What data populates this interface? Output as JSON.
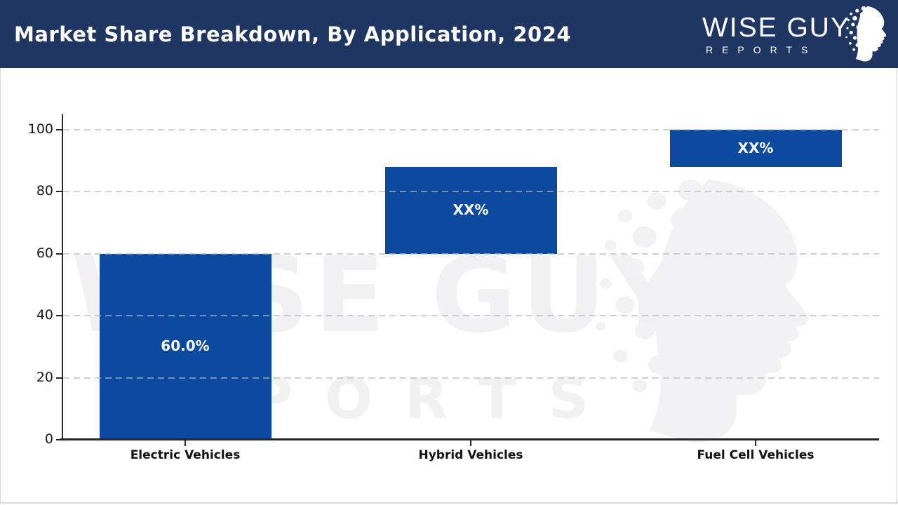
{
  "header": {
    "title": "Market Share Breakdown, By Application, 2024",
    "logo": {
      "brand_line1": "WISE GUY",
      "brand_line2": "REPORTS"
    }
  },
  "watermark": {
    "line1": "WISE GUY",
    "line2": "REPORTS"
  },
  "chart_data": {
    "type": "bar",
    "variant": "waterfall-stacked-breakdown",
    "title": "Market Share Breakdown, By Application, 2024",
    "categories": [
      "Electric Vehicles",
      "Hybrid Vehicles",
      "Fuel Cell Vehicles"
    ],
    "bars": [
      {
        "category": "Electric Vehicles",
        "start": 0,
        "end": 60,
        "label": "60.0%"
      },
      {
        "category": "Hybrid Vehicles",
        "start": 60,
        "end": 88,
        "label": "XX%"
      },
      {
        "category": "Fuel Cell Vehicles",
        "start": 88,
        "end": 100,
        "label": "XX%"
      }
    ],
    "xlabel": "",
    "ylabel": "",
    "ylim": [
      0,
      105
    ],
    "yticks": [
      0,
      20,
      40,
      60,
      80,
      100
    ],
    "grid": "horizontal-dashed",
    "legend": "none",
    "bar_color": "#0B4A9E",
    "value_label_color": "#FFFFFF"
  },
  "colors": {
    "header_bg": "#203662",
    "bar": "#0B4A9E",
    "axis": "#262626",
    "grid_dash": "#B2B7C2",
    "watermark": "#F1F1F4",
    "page_bg": "#FFFFFF",
    "frame_border": "#D9D9D9"
  }
}
